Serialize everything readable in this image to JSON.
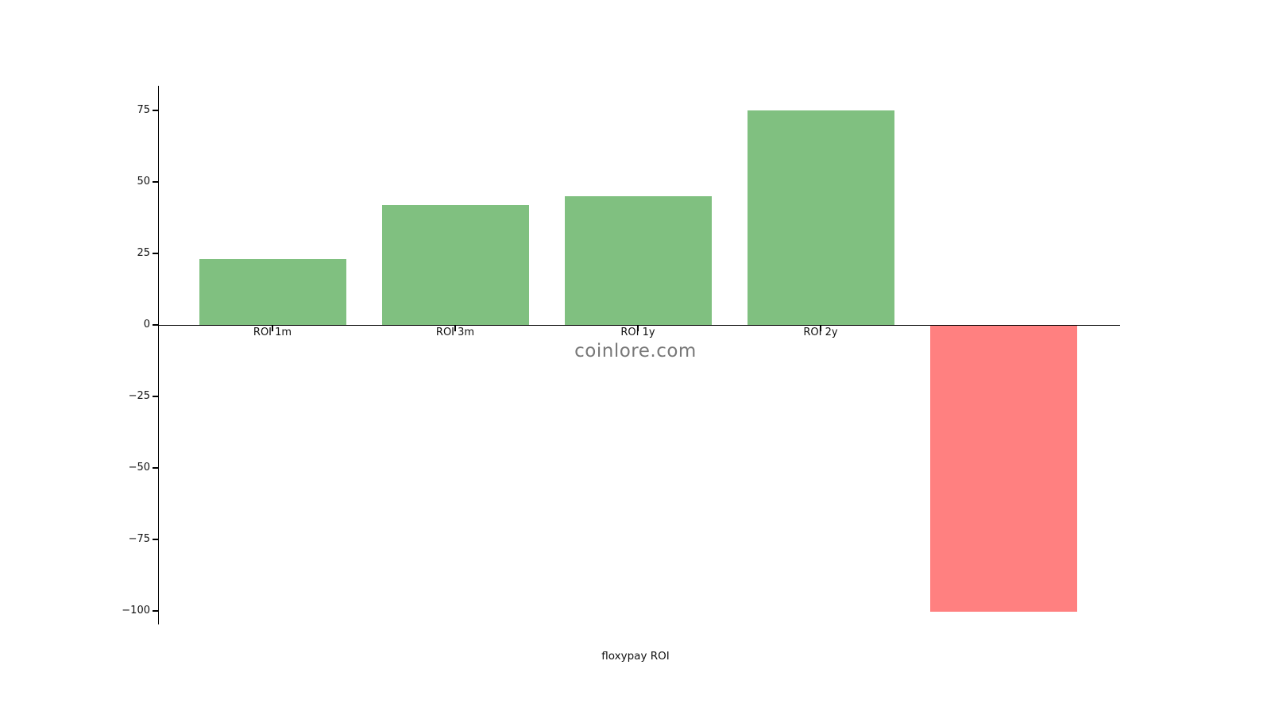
{
  "chart_data": {
    "type": "bar",
    "categories": [
      "ROI 1m",
      "ROI 3m",
      "ROI 1y",
      "ROI 2y",
      ""
    ],
    "values": [
      23,
      42,
      45,
      75,
      -100
    ],
    "bar_colors": [
      "#80c080",
      "#80c080",
      "#80c080",
      "#80c080",
      "#ff8080"
    ],
    "positive_color": "#80c080",
    "negative_color": "#ff8080",
    "title": "",
    "xlabel": "floxypay ROI",
    "ylabel": "",
    "yticks": [
      75,
      50,
      25,
      0,
      -25,
      -50,
      -75,
      -100
    ],
    "ylim": [
      -104,
      84
    ],
    "grid": false,
    "legend": "none",
    "watermark": "coinlore.com",
    "axis_color": "#000000",
    "tick_text_color": "#111111",
    "watermark_color": "#787878"
  }
}
